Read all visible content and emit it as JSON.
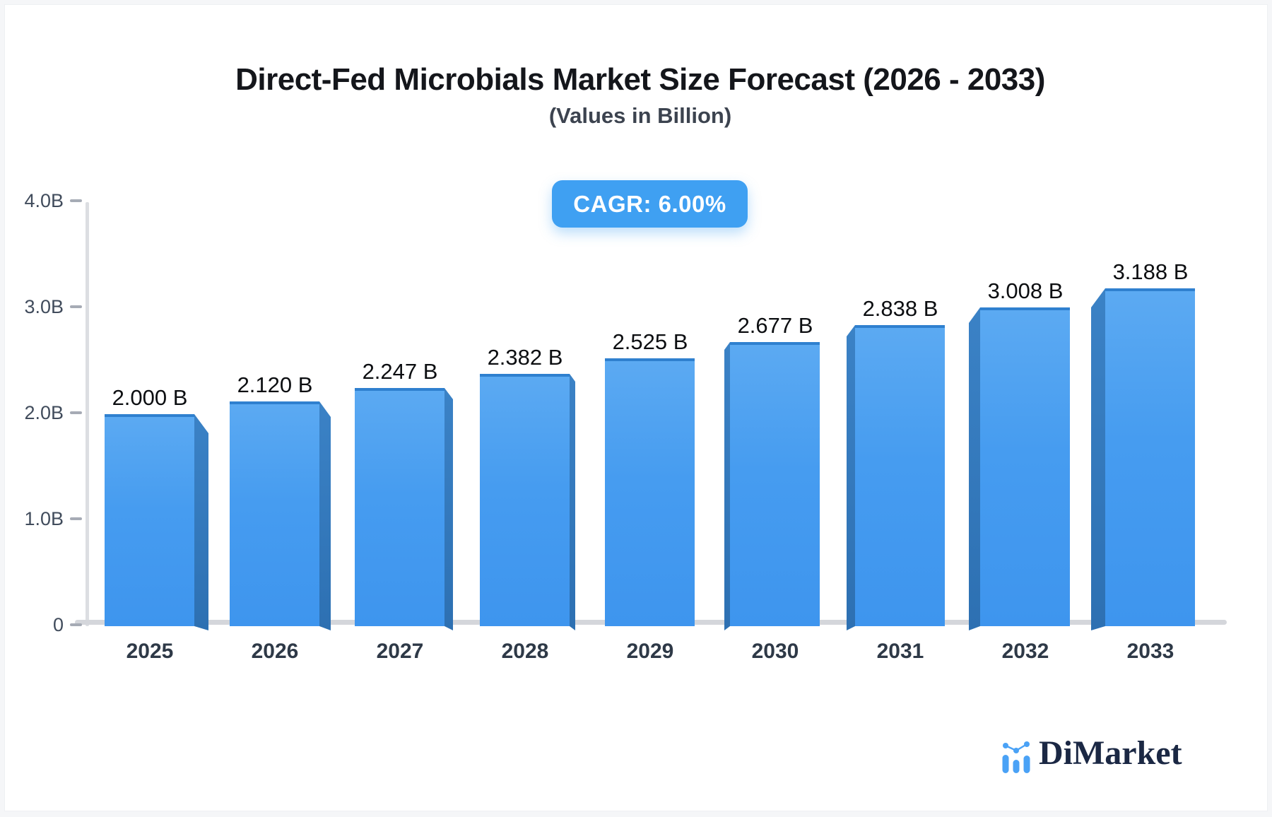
{
  "header": {
    "title": "Direct-Fed Microbials Market Size Forecast (2026 - 2033)",
    "subtitle": "(Values in Billion)"
  },
  "badge": {
    "label": "CAGR: 6.00%"
  },
  "chart_data": {
    "type": "bar",
    "title": "Direct-Fed Microbials Market Size Forecast (2026 - 2033)",
    "subtitle": "(Values in Billion)",
    "unit": "Billion",
    "cagr_percent": "6.00%",
    "categories": [
      "2025",
      "2026",
      "2027",
      "2028",
      "2029",
      "2030",
      "2031",
      "2032",
      "2033"
    ],
    "values": [
      2.0,
      2.12,
      2.247,
      2.382,
      2.525,
      2.677,
      2.838,
      3.008,
      3.188
    ],
    "value_labels": [
      "2.000 B",
      "2.120 B",
      "2.247 B",
      "2.382 B",
      "2.525 B",
      "2.677 B",
      "2.838 B",
      "3.008 B",
      "3.188 B"
    ],
    "ylim": [
      0,
      4
    ],
    "yticks": [
      {
        "value": 4,
        "label": "4.0B"
      },
      {
        "value": 3,
        "label": "3.0B"
      },
      {
        "value": 2,
        "label": "2.0B"
      },
      {
        "value": 1,
        "label": "1.0B"
      },
      {
        "value": 0,
        "label": "0"
      }
    ],
    "grid": "off",
    "legend": "none"
  },
  "colors": {
    "accent": "#3fa0f2",
    "bar_face_top": "#5caaf2",
    "bar_face_bottom": "#3e95ee",
    "bar_side": "#2d70b2",
    "bar_top_edge": "#2f80cf",
    "axis_line": "#dcdee2",
    "baseline": "#d4d6db",
    "title_text": "#14161b",
    "logo_navy": "#1b2844",
    "logo_blue": "#4aa2f6"
  },
  "logo": {
    "text": "DiMarket",
    "icon": "mini-bar-chart-icon"
  }
}
